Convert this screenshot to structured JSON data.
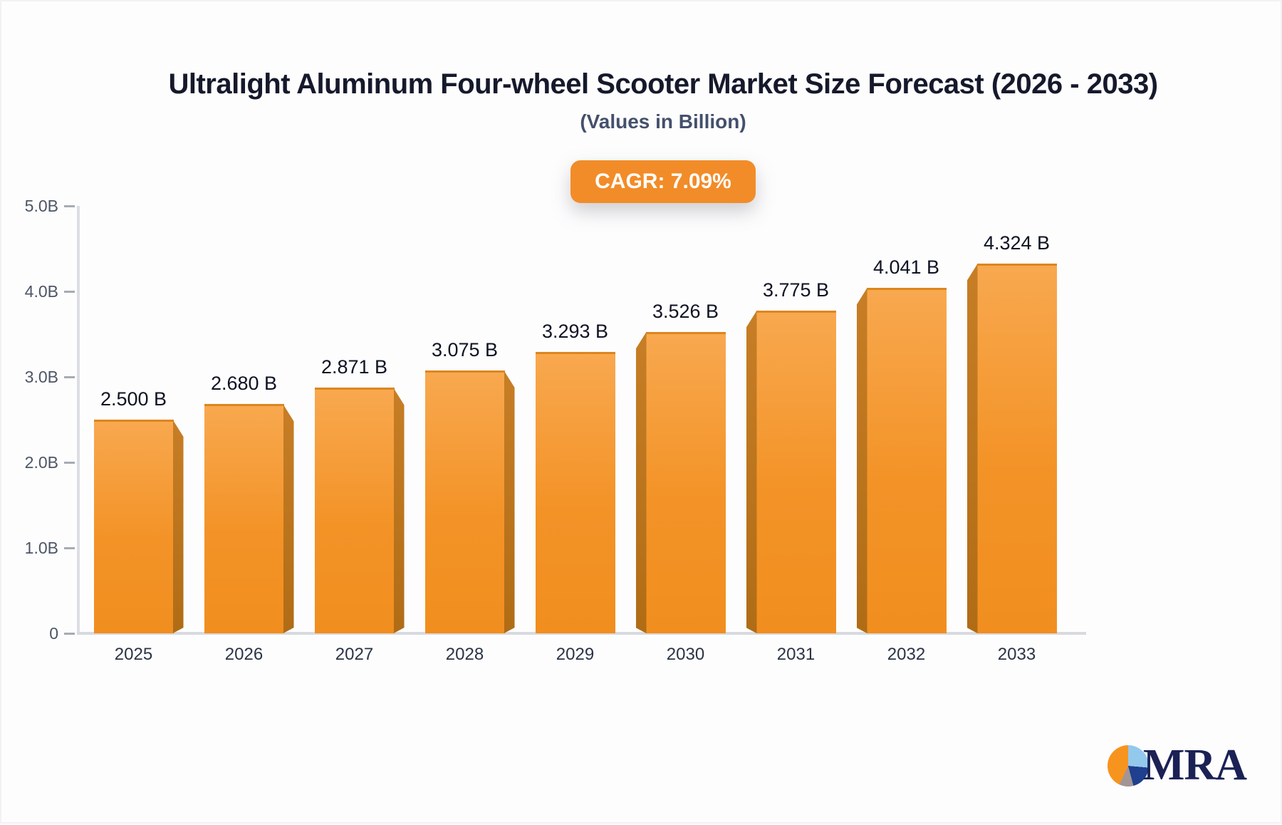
{
  "title": "Ultralight Aluminum Four-wheel Scooter Market Size Forecast (2026 - 2033)",
  "subtitle": "(Values in Billion)",
  "badge": {
    "label": "CAGR: 7.09%",
    "background": "#F28C28",
    "text_color": "#FFFFFF"
  },
  "logo": {
    "text": "MRA",
    "icon": "pie-chart-icon"
  },
  "colors": {
    "bar_front_top": "#F8A84F",
    "bar_front_bottom": "#F18E1F",
    "bar_side": "#BE7420",
    "axis_line": "#D8DADF",
    "title_text": "#15192B",
    "subtitle_text": "#44506B"
  },
  "chart_data": {
    "type": "bar",
    "title": "Ultralight Aluminum Four-wheel Scooter Market Size Forecast (2026 - 2033)",
    "subtitle": "(Values in Billion)",
    "xlabel": "",
    "ylabel": "",
    "categories": [
      "2025",
      "2026",
      "2027",
      "2028",
      "2029",
      "2030",
      "2031",
      "2032",
      "2033"
    ],
    "values": [
      2.5,
      2.68,
      2.871,
      3.075,
      3.293,
      3.526,
      3.775,
      4.041,
      4.324
    ],
    "value_labels": [
      "2.500 B",
      "2.680 B",
      "2.871 B",
      "3.075 B",
      "3.293 B",
      "3.526 B",
      "3.775 B",
      "4.041 B",
      "4.324 B"
    ],
    "ylim": [
      0,
      5
    ],
    "yticks": [
      {
        "label": "5.0B",
        "value": 5
      },
      {
        "label": "4.0B",
        "value": 4
      },
      {
        "label": "3.0B",
        "value": 3
      },
      {
        "label": "2.0B",
        "value": 2
      },
      {
        "label": "1.0B",
        "value": 1
      },
      {
        "label": "0",
        "value": 0
      }
    ],
    "grid": false,
    "legend": null,
    "annotation": "CAGR: 7.09%"
  }
}
